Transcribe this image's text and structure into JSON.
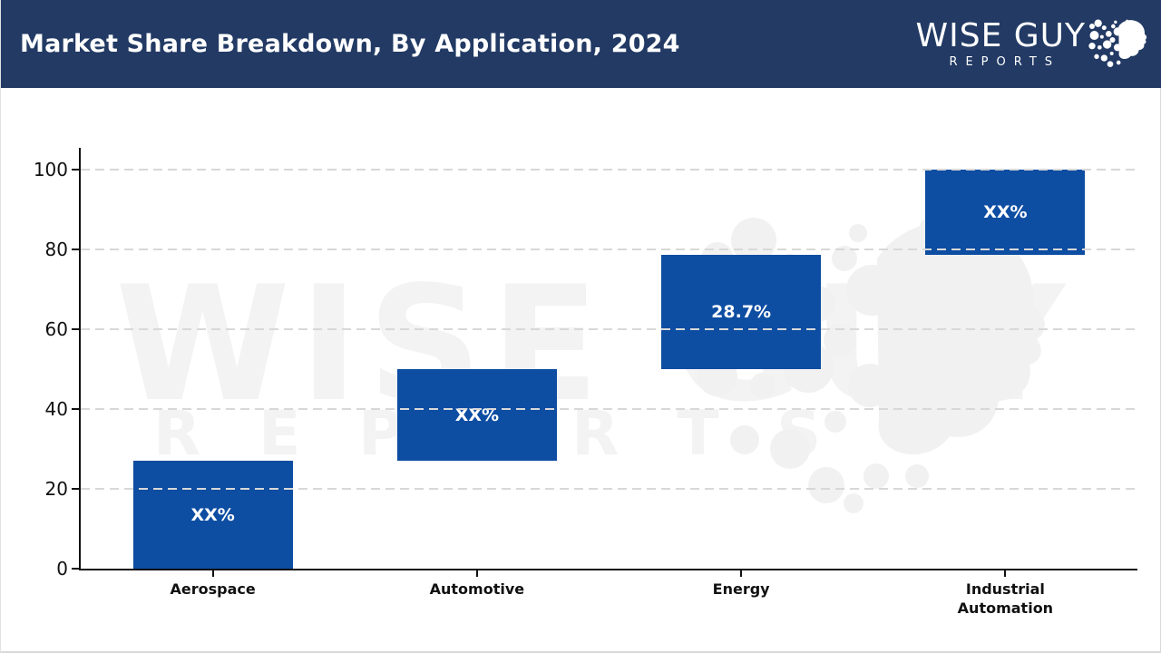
{
  "header": {
    "title": "Market Share Breakdown, By Application, 2024",
    "logo": {
      "line1": "WISE GUY",
      "line2": "REPORTS",
      "face_icon": "dotted-head-profile-icon"
    }
  },
  "watermark": {
    "line1": "WISE GUY",
    "line2": "R E P O R T S",
    "face_icon": "dotted-head-profile-watermark"
  },
  "colors": {
    "header_bg": "#223a64",
    "bar": "#0d4da2",
    "grid": "#d8d8d8",
    "axis": "#111111",
    "bar_label": "#ffffff",
    "watermark": "#f3f3f3"
  },
  "chart_data": {
    "type": "bar",
    "subtype": "waterfall-breakdown",
    "title": "Market Share Breakdown, By Application, 2024",
    "xlabel": "",
    "ylabel": "",
    "categories": [
      "Aerospace",
      "Automotive",
      "Energy",
      "Industrial Automation"
    ],
    "segments": [
      {
        "category": "Aerospace",
        "start": 0,
        "end": 27,
        "label": "XX%"
      },
      {
        "category": "Automotive",
        "start": 27,
        "end": 50,
        "label": "XX%"
      },
      {
        "category": "Energy",
        "start": 50,
        "end": 78.7,
        "label": "28.7%"
      },
      {
        "category": "Industrial Automation",
        "start": 78.7,
        "end": 100,
        "label": "XX%"
      }
    ],
    "y_ticks": [
      0,
      20,
      40,
      60,
      80,
      100
    ],
    "ylim": [
      0,
      105
    ],
    "grid": "horizontal-dashed",
    "legend": "none"
  }
}
